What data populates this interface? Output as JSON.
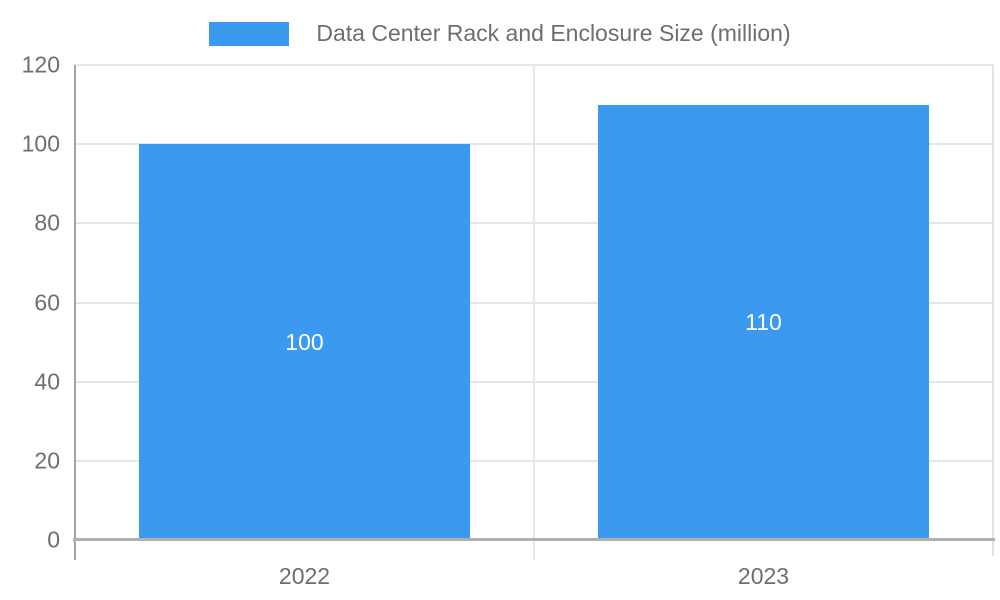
{
  "legend": {
    "label": "Data Center Rack and Enclosure Size (million)"
  },
  "chart_data": {
    "type": "bar",
    "title": "Data Center Rack and Enclosure Size (million)",
    "categories": [
      "2022",
      "2023"
    ],
    "values": [
      100,
      110
    ],
    "data_labels": [
      "100",
      "110"
    ],
    "xlabel": "",
    "ylabel": "",
    "ylim": [
      0,
      120
    ],
    "yticks": [
      0,
      20,
      40,
      60,
      80,
      100,
      120
    ],
    "grid": true,
    "legend_position": "top",
    "colors": {
      "bar": "#3B99F0",
      "bar_label": "#FFFFFF",
      "axis_text": "#6E6E6E",
      "gridline": "#E6E6E6",
      "baseline": "#B0B0B0",
      "axis_line": "#A3A3A3",
      "divider": "#E6E6E6",
      "right_border": "#E3E3E3"
    }
  }
}
